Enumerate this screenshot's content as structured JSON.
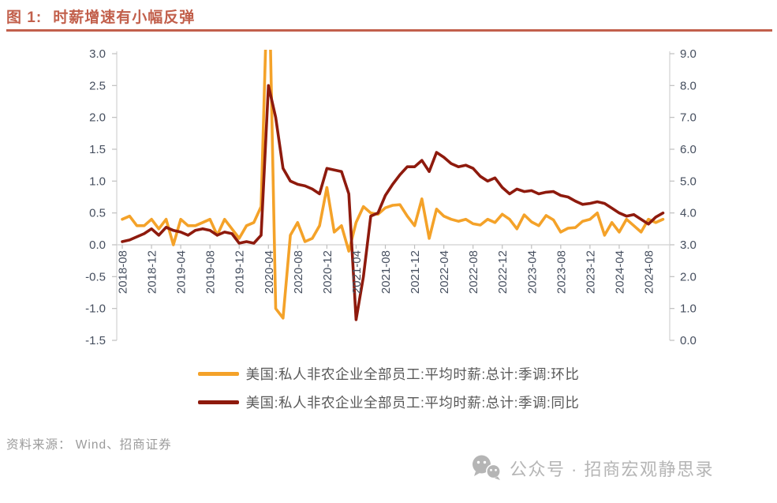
{
  "figure_label": "图 1:",
  "figure_title": "时薪增速有小幅反弹",
  "chart_data": {
    "type": "line",
    "title": "图 1: 时薪增速有小幅反弹",
    "x_start": "2018-08",
    "x_frequency": "monthly",
    "x_tick_labels": [
      "2018-08",
      "2018-12",
      "2019-04",
      "2019-08",
      "2019-12",
      "2020-04",
      "2020-08",
      "2020-12",
      "2021-04",
      "2021-08",
      "2021-12",
      "2022-04",
      "2022-08",
      "2022-12",
      "2023-04",
      "2023-08",
      "2023-12",
      "2024-04",
      "2024-08"
    ],
    "left_axis": {
      "min": -1.5,
      "max": 3.0,
      "step": 0.5,
      "tick_labels": [
        "3.0",
        "2.5",
        "2.0",
        "1.5",
        "1.0",
        "0.5",
        "0.0",
        "-0.5",
        "-1.0",
        "-1.5"
      ]
    },
    "right_axis": {
      "min": 0.0,
      "max": 9.0,
      "step": 1.0,
      "tick_labels": [
        "9.0",
        "8.0",
        "7.0",
        "6.0",
        "5.0",
        "4.0",
        "3.0",
        "2.0",
        "1.0",
        "0.0"
      ]
    },
    "grid": "zero-baseline-only",
    "legend_position": "bottom",
    "series": [
      {
        "name": "美国:私人非农企业全部员工:平均时薪:总计:季调:环比",
        "axis": "left",
        "color": "#F4A229",
        "values": [
          0.4,
          0.45,
          0.3,
          0.3,
          0.4,
          0.25,
          0.4,
          0.0,
          0.4,
          0.3,
          0.3,
          0.35,
          0.4,
          0.15,
          0.4,
          0.25,
          0.1,
          0.3,
          0.35,
          0.6,
          4.7,
          -1.0,
          -1.15,
          0.15,
          0.35,
          0.05,
          0.1,
          0.3,
          0.9,
          0.2,
          0.3,
          -0.1,
          0.35,
          0.6,
          0.5,
          0.48,
          0.58,
          0.62,
          0.63,
          0.45,
          0.3,
          0.72,
          0.1,
          0.56,
          0.45,
          0.4,
          0.37,
          0.4,
          0.33,
          0.31,
          0.4,
          0.35,
          0.48,
          0.4,
          0.25,
          0.47,
          0.36,
          0.3,
          0.46,
          0.39,
          0.2,
          0.26,
          0.27,
          0.37,
          0.4,
          0.5,
          0.15,
          0.35,
          0.2,
          0.4,
          0.3,
          0.2,
          0.4,
          0.35,
          0.4
        ]
      },
      {
        "name": "美国:私人非农企业全部员工:平均时薪:总计:季调:同比",
        "axis": "right",
        "color": "#8E1A0D",
        "values": [
          3.1,
          3.15,
          3.25,
          3.35,
          3.5,
          3.3,
          3.55,
          3.45,
          3.4,
          3.3,
          3.45,
          3.5,
          3.45,
          3.3,
          3.4,
          3.35,
          3.05,
          3.1,
          3.05,
          3.3,
          8.0,
          7.0,
          5.4,
          5.0,
          4.9,
          4.85,
          4.75,
          4.6,
          5.4,
          5.35,
          5.3,
          4.6,
          0.65,
          2.0,
          3.9,
          4.0,
          4.55,
          4.9,
          5.2,
          5.45,
          5.45,
          5.65,
          5.3,
          5.9,
          5.75,
          5.55,
          5.45,
          5.5,
          5.4,
          5.15,
          5.0,
          5.1,
          4.8,
          4.6,
          4.75,
          4.67,
          4.7,
          4.6,
          4.65,
          4.67,
          4.55,
          4.5,
          4.37,
          4.27,
          4.3,
          4.35,
          4.3,
          4.15,
          4.0,
          3.9,
          3.95,
          3.8,
          3.65,
          3.87,
          4.0
        ]
      }
    ]
  },
  "colors": {
    "title": "#C2604C",
    "axis_text": "#454e5e",
    "axis_line": "#d9d9d9",
    "tick_mark": "#bfbfbf",
    "legend_text": "#595959",
    "source_text": "#9b9b9b",
    "wechat_text": "#b5b5b5"
  },
  "footer": {
    "source": "资料来源： Wind、招商证券",
    "wechat": "公众号 · 招商宏观静思录"
  }
}
